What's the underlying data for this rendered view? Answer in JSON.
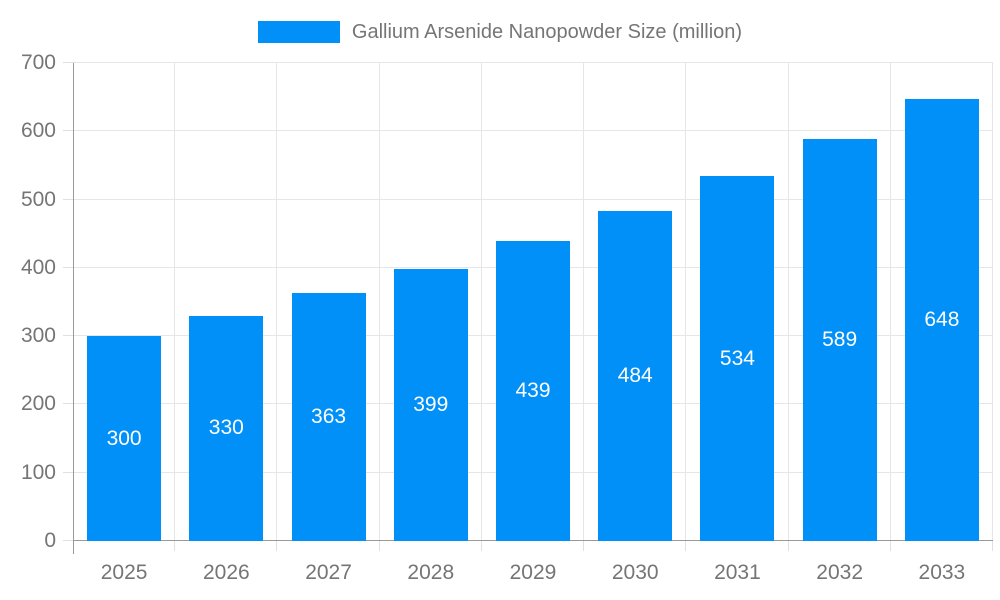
{
  "chart_data": {
    "type": "bar",
    "title": "Gallium Arsenide Nanopowder Size (million)",
    "series_name": "Gallium Arsenide Nanopowder Size (million)",
    "categories": [
      "2025",
      "2026",
      "2027",
      "2028",
      "2029",
      "2030",
      "2031",
      "2032",
      "2033"
    ],
    "values": [
      300,
      330,
      363,
      399,
      439,
      484,
      534,
      589,
      648
    ],
    "xlabel": "",
    "ylabel": "",
    "ylim": [
      0,
      700
    ],
    "ytick_interval": 100,
    "ytick_labels": [
      "0",
      "100",
      "200",
      "300",
      "400",
      "500",
      "600",
      "700"
    ],
    "grid": true,
    "legend_position": "top-center",
    "value_label_position": "inside-center",
    "value_label_color": "#FFFFFF"
  },
  "colors": {
    "bar": "#0190F8",
    "axis_line": "#999999",
    "grid_line": "#E6E6E6",
    "tick_line": "#E0E0E0",
    "tick_text": "#757575",
    "legend_text": "#757575",
    "background": "#FFFFFF"
  }
}
